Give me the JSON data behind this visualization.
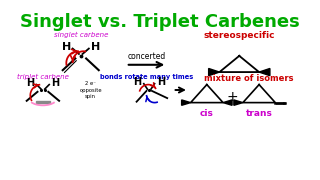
{
  "title": "Singlet vs. Triplet Carbenes",
  "title_color": "#00aa00",
  "title_fontsize": 13,
  "bg_color": "#ffffff",
  "singlet_label": "singlet carbene",
  "singlet_label_color": "#cc00cc",
  "triplet_label": "triplet carbene",
  "triplet_label_color": "#cc00cc",
  "concerted_text": "concerted",
  "bonds_rotate_text": "bonds rotate many times",
  "bonds_rotate_color": "#0000cc",
  "two_e_text": "2 e⁻\nopposite\nspin",
  "stereospecific_text": "stereospecific",
  "stereospecific_color": "#cc0000",
  "mixture_text": "mixture of isomers",
  "mixture_color": "#cc0000",
  "cis_text": "cis",
  "cis_color": "#cc00cc",
  "trans_text": "trans",
  "trans_color": "#cc00cc",
  "plus_text": "+",
  "arrow_color": "#000000",
  "red_arrow_color": "#cc0000",
  "blue_arrow_color": "#0000cc",
  "pink_arc_color": "#ff88cc"
}
